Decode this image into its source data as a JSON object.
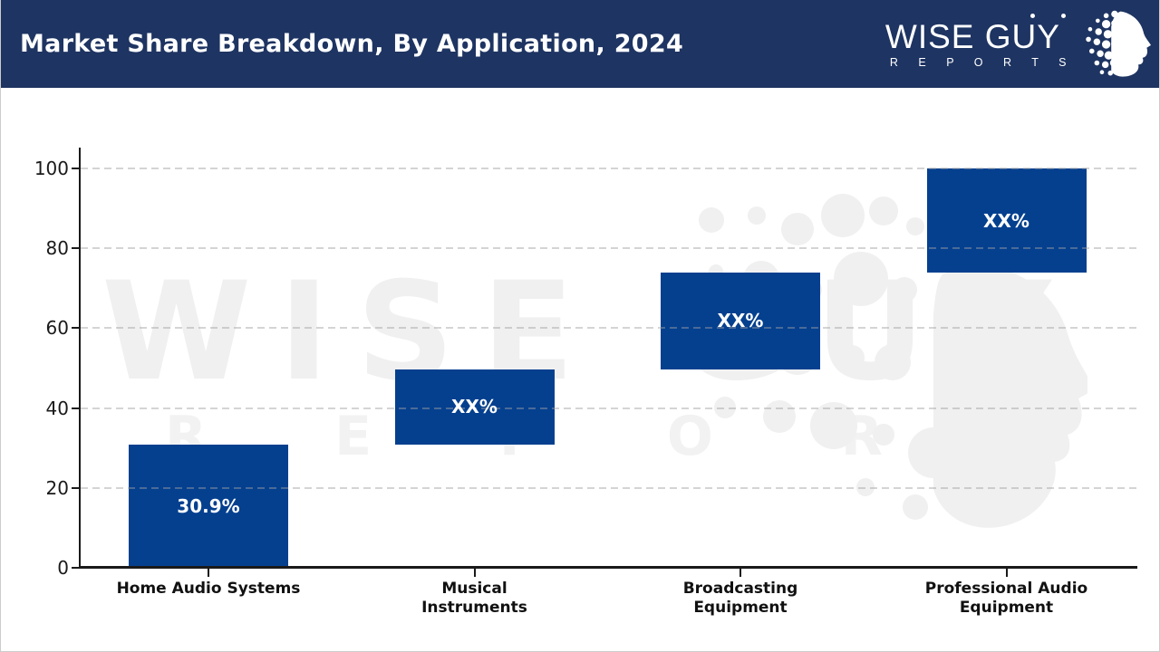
{
  "header": {
    "title": "Market Share Breakdown, By Application, 2024",
    "background_color": "#1e3462",
    "logo": {
      "wordmark": "WISE GUY",
      "subtext": "R E P O R T S"
    }
  },
  "watermark": {
    "line1": "WISE GUY",
    "line2": "R E P O R T S"
  },
  "chart_data": {
    "type": "bar",
    "variant": "waterfall",
    "title": "Market Share Breakdown, By Application, 2024",
    "categories": [
      "Home Audio Systems",
      "Musical Instruments",
      "Broadcasting Equipment",
      "Professional Audio Equipment"
    ],
    "category_lines": [
      [
        "Home Audio Systems"
      ],
      [
        "Musical",
        "Instruments"
      ],
      [
        "Broadcasting",
        "Equipment"
      ],
      [
        "Professional Audio",
        "Equipment"
      ]
    ],
    "segments": [
      {
        "start": 0,
        "end": 30.9,
        "label": "30.9%"
      },
      {
        "start": 30.9,
        "end": 49.7,
        "label": "XX%"
      },
      {
        "start": 49.7,
        "end": 73.9,
        "label": "XX%"
      },
      {
        "start": 73.9,
        "end": 100,
        "label": "XX%"
      }
    ],
    "ylim": [
      0,
      100
    ],
    "yticks": [
      0,
      20,
      40,
      60,
      80,
      100
    ],
    "grid": {
      "horizontal": true,
      "style": "dashed",
      "drawn_over_bars": true
    },
    "legend": "none",
    "colors": {
      "bar": "#05408f",
      "bar_label": "#ffffff",
      "axis": "#1a1a1a",
      "grid": "#d8d8d8"
    }
  }
}
